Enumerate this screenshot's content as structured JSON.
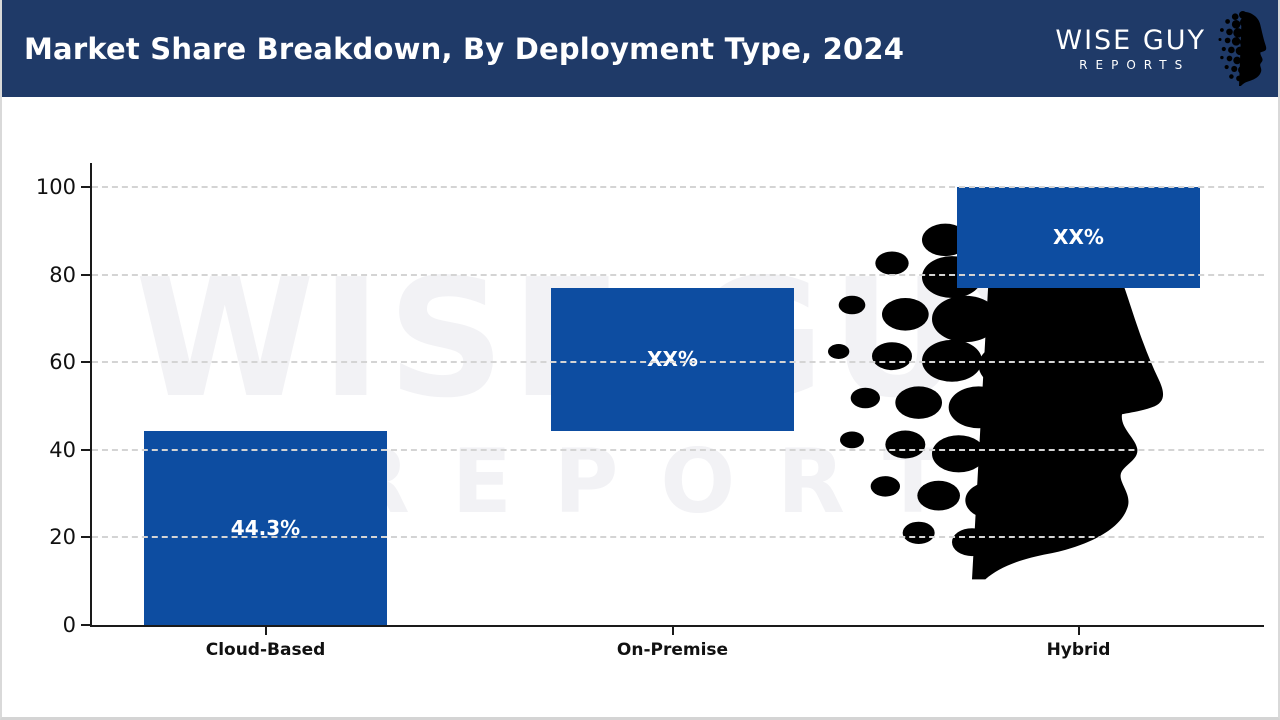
{
  "header": {
    "title": "Market Share Breakdown, By Deployment Type, 2024",
    "logo": {
      "name": "WISE GUY",
      "subname": "REPORTS"
    }
  },
  "watermark": {
    "name": "WISE GUY",
    "subname": "REPORTS"
  },
  "icons": {
    "logo_head": "wiseguy-dotted-head-icon"
  },
  "colors": {
    "header_bg": "#1f3a68",
    "bar": "#0d4da1",
    "bar_label": "#ffffff",
    "grid": "#d4d4d4",
    "axis": "#1a1a1a",
    "tick_label": "#111111",
    "watermark": "#f2f2f5",
    "frame_border": "#d9d9d9"
  },
  "chart_data": {
    "type": "bar",
    "subtype": "floating-segment waterfall of market share",
    "title": "Market Share Breakdown, By Deployment Type, 2024",
    "categories": [
      "Cloud-Based",
      "On-Premise",
      "Hybrid"
    ],
    "segments": [
      {
        "category": "Cloud-Based",
        "start": 0,
        "end": 44.3,
        "label": "44.3%"
      },
      {
        "category": "On-Premise",
        "start": 44.3,
        "end": 77,
        "label": "XX%"
      },
      {
        "category": "Hybrid",
        "start": 77,
        "end": 100,
        "label": "XX%"
      }
    ],
    "ylim": [
      0,
      100
    ],
    "yticks": [
      0,
      20,
      40,
      60,
      80,
      100
    ],
    "xlabel": "",
    "ylabel": "",
    "grid": "horizontal dashed gridlines drawn over bars",
    "legend": "none"
  }
}
